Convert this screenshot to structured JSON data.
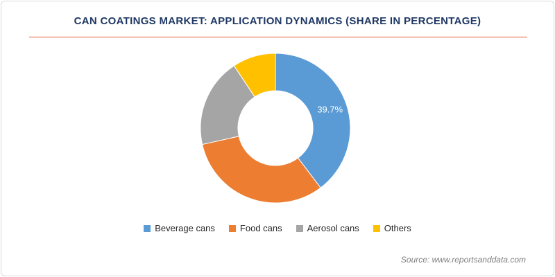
{
  "title": "CAN COATINGS MARKET: APPLICATION DYNAMICS (SHARE IN PERCENTAGE)",
  "source": "Source: www.reportsanddata.com",
  "accent_line_color": "#e2572b",
  "chart_data": {
    "type": "pie",
    "subtype": "donut",
    "title": "CAN COATINGS MARKET: APPLICATION DYNAMICS (SHARE IN PERCENTAGE)",
    "categories": [
      "Beverage cans",
      "Food cans",
      "Aerosol cans",
      "Others"
    ],
    "values": [
      39.7,
      31.8,
      19.2,
      9.3
    ],
    "colors": [
      "#5b9bd5",
      "#ed7d31",
      "#a5a5a5",
      "#ffc000"
    ],
    "data_labels": [
      "39.7%",
      "",
      "",
      ""
    ],
    "legend_position": "bottom",
    "start_angle_deg": -90,
    "inner_radius_ratio": 0.5
  }
}
